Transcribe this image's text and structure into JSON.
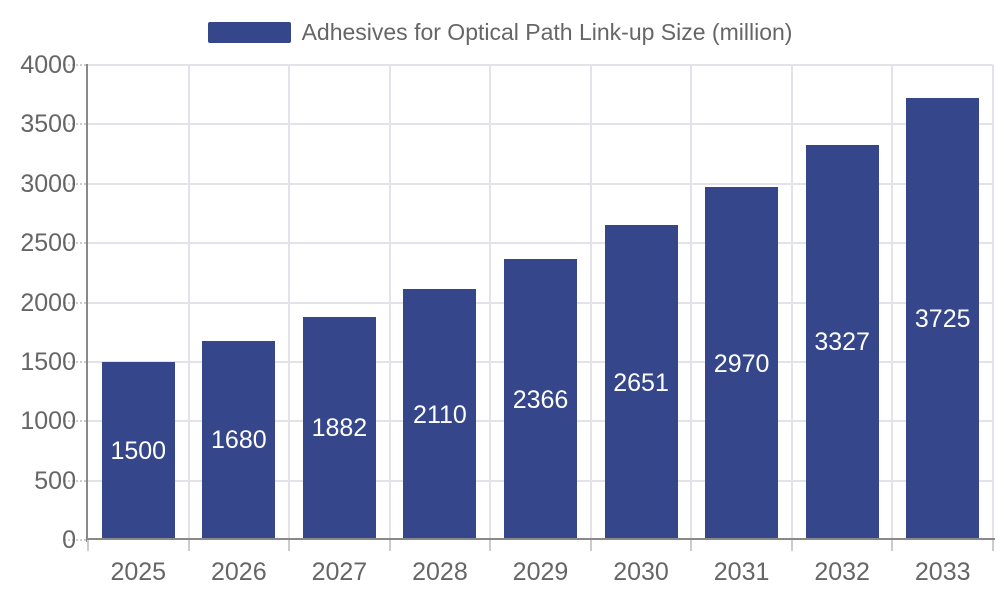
{
  "legend": {
    "label": "Adhesives for Optical Path Link-up Size (million)"
  },
  "colors": {
    "bar": "#35478A",
    "axis_line": "#898989",
    "grid_line": "#e2e2e8",
    "tick": "#cccccc",
    "axis_text": "#666666",
    "bar_label_text": "#ffffff",
    "background": "#ffffff"
  },
  "chart_data": {
    "type": "bar",
    "title": "Adhesives for Optical Path Link-up Size (million)",
    "categories": [
      "2025",
      "2026",
      "2027",
      "2028",
      "2029",
      "2030",
      "2031",
      "2032",
      "2033"
    ],
    "values": [
      1500,
      1680,
      1882,
      2110,
      2366,
      2651,
      2970,
      3327,
      3725
    ],
    "series_name": "Adhesives for Optical Path Link-up Size (million)",
    "xlabel": "",
    "ylabel": "",
    "ylim": [
      0,
      4000
    ],
    "ytick_step": 500,
    "ytick_labels": [
      "0",
      "500",
      "1000",
      "1500",
      "2000",
      "2500",
      "3000",
      "3500",
      "4000"
    ],
    "grid": true,
    "legend_position": "top",
    "bar_labels_visible": true,
    "bar_label_position": "inside-center"
  }
}
